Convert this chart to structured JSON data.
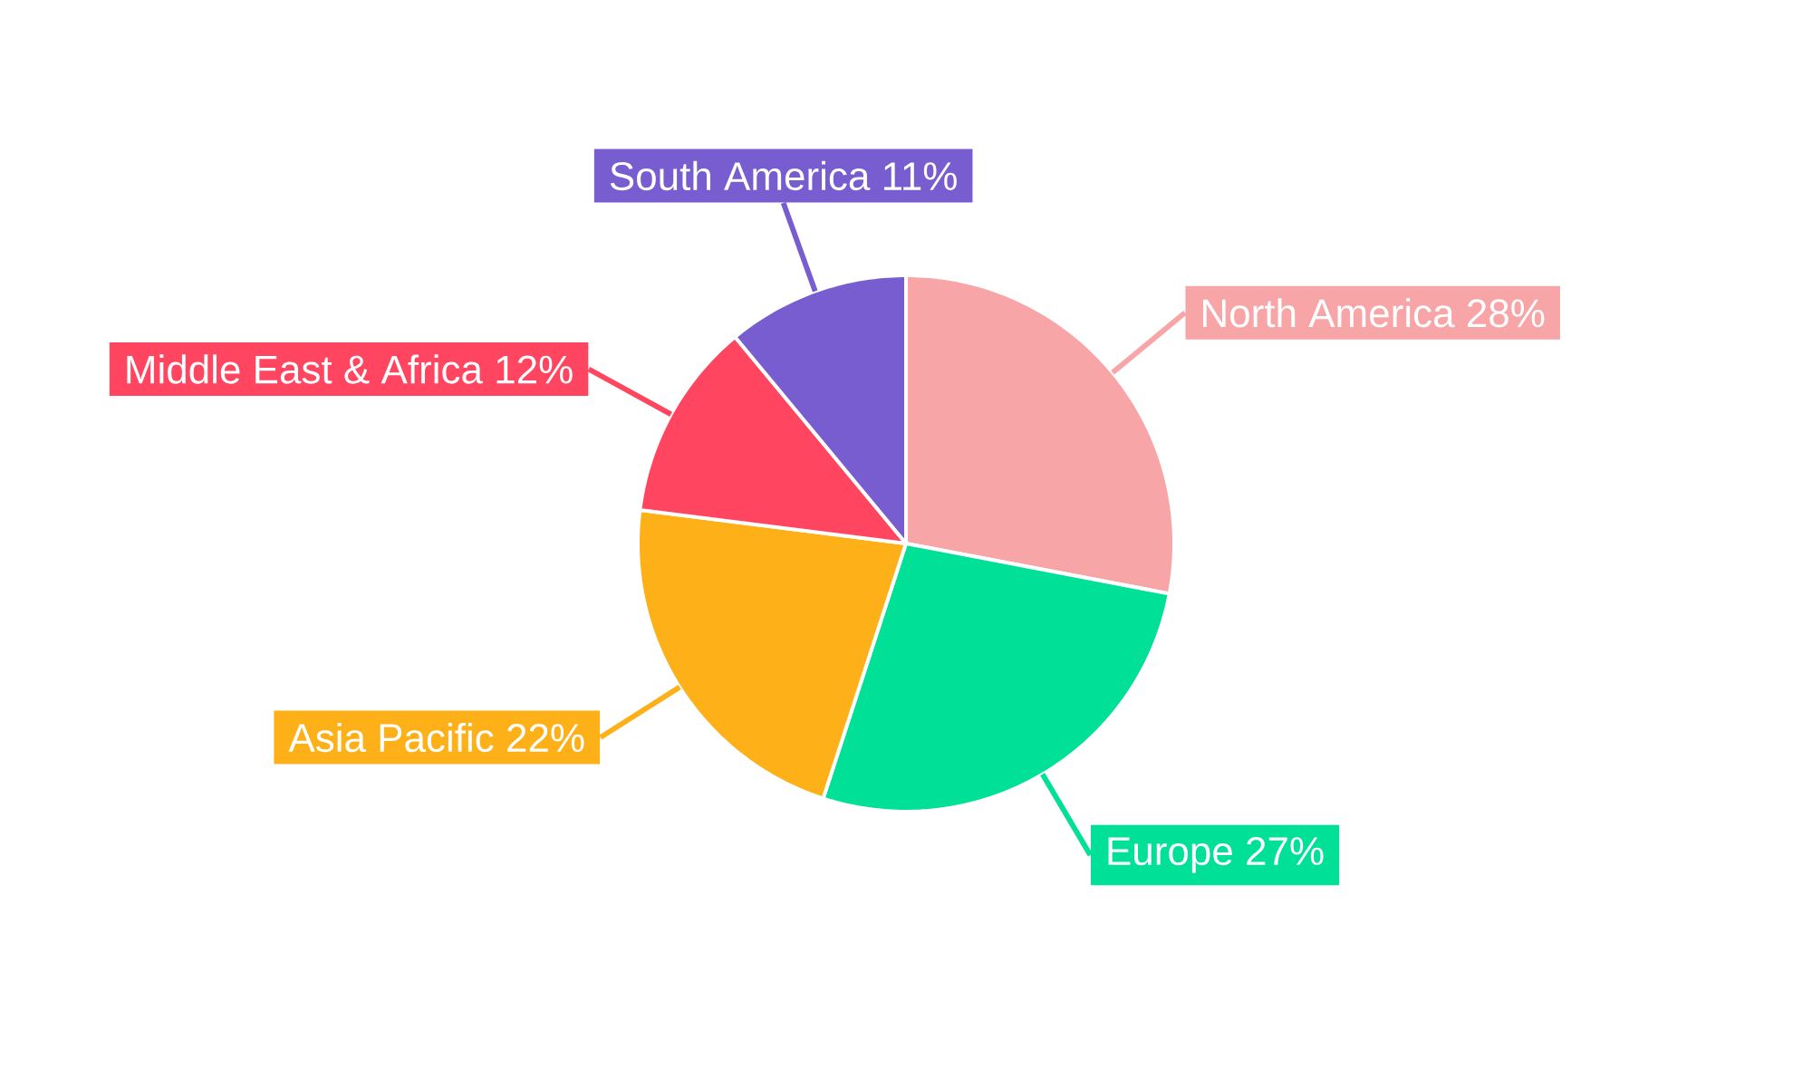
{
  "chart_data": {
    "type": "pie",
    "categories": [
      "North America",
      "Europe",
      "Asia Pacific",
      "Middle East & Africa",
      "South America"
    ],
    "values": [
      28,
      27,
      22,
      12,
      11
    ],
    "value_labels": [
      "28%",
      "27%",
      "22%",
      "12%",
      "11%"
    ],
    "colors": [
      "#f8a5a8",
      "#00e096",
      "#feb019",
      "#ff4560",
      "#775dd0"
    ]
  }
}
